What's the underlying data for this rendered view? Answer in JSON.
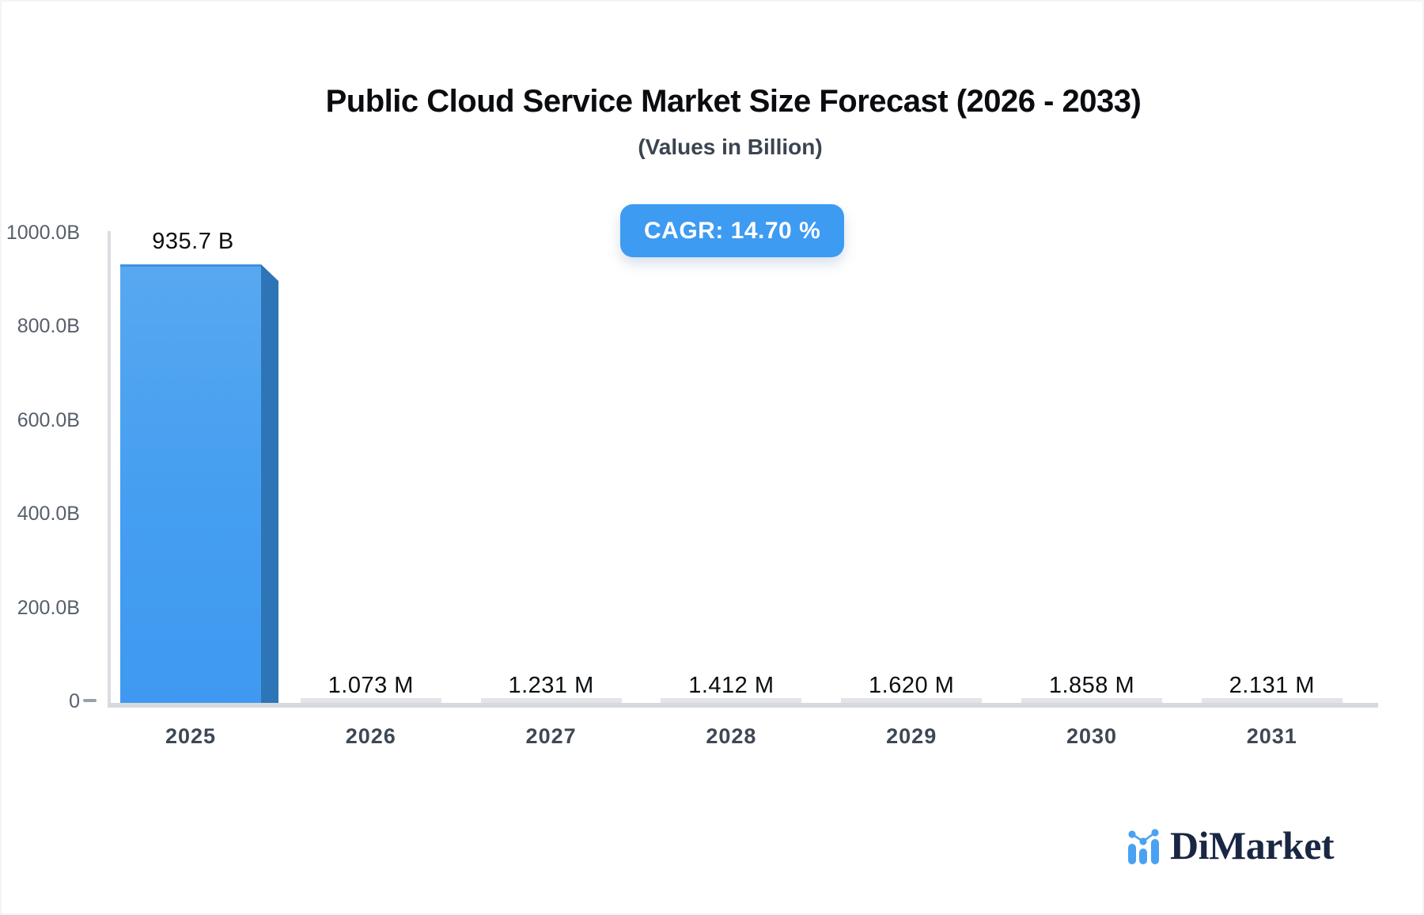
{
  "page": {
    "title": "Public Cloud Service Market Size Forecast (2026 - 2033)",
    "subtitle": "(Values in Billion)",
    "cagr_badge": "CAGR: 14.70 %",
    "logo_text": "DiMarket"
  },
  "chart_data": {
    "type": "bar",
    "title": "Public Cloud Service Market Size Forecast (2026 - 2033)",
    "subtitle": "(Values in Billion)",
    "cagr_label": "CAGR: 14.70 %",
    "cagr_percent": 14.7,
    "categories": [
      "2025",
      "2026",
      "2027",
      "2028",
      "2029",
      "2030",
      "2031"
    ],
    "values": [
      935.7,
      1.073,
      1.231,
      1.412,
      1.62,
      1.858,
      2.131
    ],
    "value_labels": [
      "935.7 B",
      "1.073 M",
      "1.231 M",
      "1.412 M",
      "1.620 M",
      "1.858 M",
      "2.131 M"
    ],
    "value_units": [
      "B",
      "M",
      "M",
      "M",
      "M",
      "M",
      "M"
    ],
    "xlabel": "",
    "ylabel": "",
    "ylim": [
      0,
      1000
    ],
    "y_ticks": [
      {
        "value": 1000,
        "label": "1000.0B"
      },
      {
        "value": 800,
        "label": "800.0B"
      },
      {
        "value": 600,
        "label": "600.0B"
      },
      {
        "value": 400,
        "label": "400.0B"
      },
      {
        "value": 200,
        "label": "200.0B"
      },
      {
        "value": 0,
        "label": "0"
      }
    ],
    "grid": false,
    "legend": "none",
    "colors": {
      "bar_front": "#459EF0",
      "bar_side": "#2E75B7",
      "flat_bar": "#E2E4E7",
      "baseline": "#D6D9DD",
      "axis_line": "#DADCE0",
      "badge_bg": "#3D9BF2",
      "logo_blue": "#4AA1F1",
      "logo_navy": "#1A2743"
    }
  }
}
